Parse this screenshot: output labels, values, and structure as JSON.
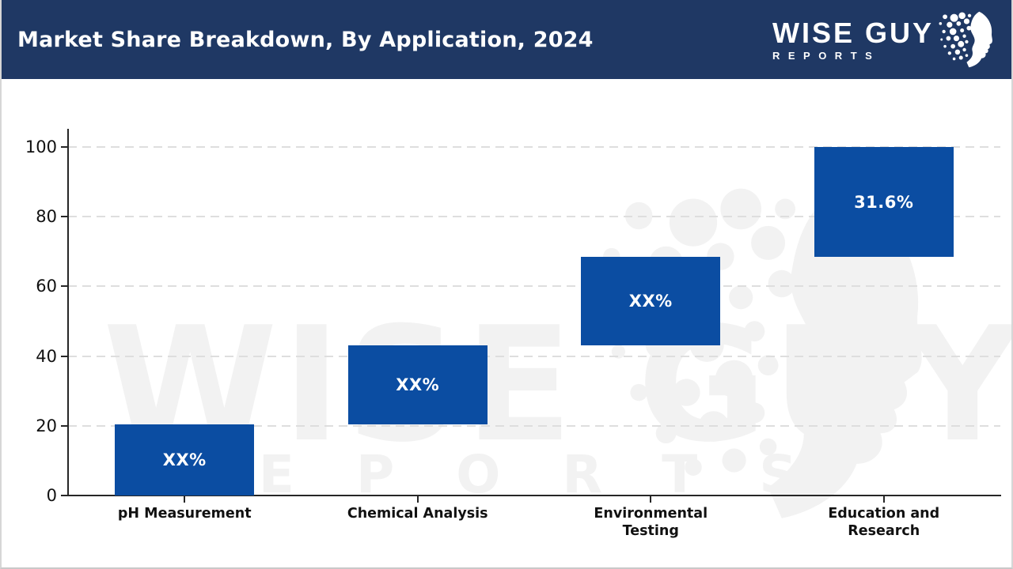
{
  "header": {
    "title": "Market Share Breakdown, By Application, 2024",
    "logo": {
      "line1": "WISE GUY",
      "line2": "REPORTS"
    }
  },
  "watermark": {
    "line1": "WISE GUY",
    "line2": "REPORTS"
  },
  "chart_data": {
    "type": "bar",
    "subtype": "waterfall-floating-bars",
    "title": "Market Share Breakdown, By Application, 2024",
    "categories": [
      "pH Measurement",
      "Chemical Analysis",
      "Environmental\nTesting",
      "Education and\nResearch"
    ],
    "segments": [
      {
        "category": "pH Measurement",
        "start": 0,
        "end": 20.4,
        "label": "XX%"
      },
      {
        "category": "Chemical Analysis",
        "start": 20.4,
        "end": 43.1,
        "label": "XX%"
      },
      {
        "category": "Environmental Testing",
        "start": 43.1,
        "end": 68.4,
        "label": "XX%"
      },
      {
        "category": "Education and Research",
        "start": 68.4,
        "end": 100,
        "label": "31.6%",
        "value_shown": 31.6
      }
    ],
    "ylim": [
      0,
      100
    ],
    "yticks": [
      0,
      20,
      40,
      60,
      80,
      100
    ],
    "grid": "horizontal-dashed",
    "legend": "none",
    "bar_color": "#0b4da2",
    "label_color": "#ffffff"
  },
  "colors": {
    "header_bg": "#1f3864",
    "bar": "#0b4da2",
    "gridline": "#dedede",
    "axis": "#262626",
    "watermark": "#f2f2f2"
  }
}
